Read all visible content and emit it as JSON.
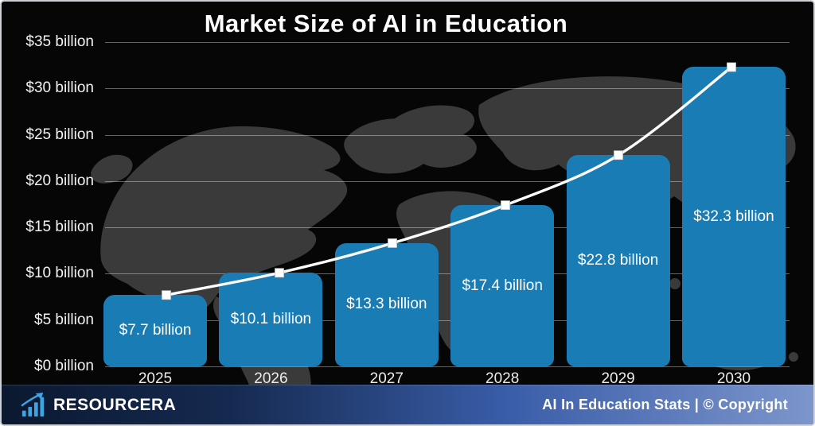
{
  "chart_data": {
    "type": "bar",
    "title": "Market Size of AI in Education",
    "categories": [
      "2025",
      "2026",
      "2027",
      "2028",
      "2029",
      "2030"
    ],
    "values": [
      7.7,
      10.1,
      13.3,
      17.4,
      22.8,
      32.3
    ],
    "bar_labels": [
      "$7.7 billion",
      "$10.1 billion",
      "$13.3 billion",
      "$17.4 billion",
      "$22.8 billion",
      "$32.3 billion"
    ],
    "ytick_labels": [
      "$35 billion",
      "$30 billion",
      "$25 billion",
      "$20 billion",
      "$15 billion",
      "$10 billion",
      "$5 billion",
      "$0 billion"
    ],
    "ytick_step": 5,
    "ylim": [
      0,
      35
    ],
    "xlabel": "",
    "ylabel": "",
    "grid": true,
    "legend": "none",
    "bar_color": "#1a7cb5",
    "line_overlay": {
      "type": "line",
      "color": "#ffffff",
      "marker": "square",
      "marker_color": "#ffffff"
    },
    "background_color": "#060606",
    "map_color": "#3a3a3a"
  },
  "footer": {
    "brand": "RESOURCERA",
    "right_text": "AI In Education Stats | © Copyright"
  }
}
